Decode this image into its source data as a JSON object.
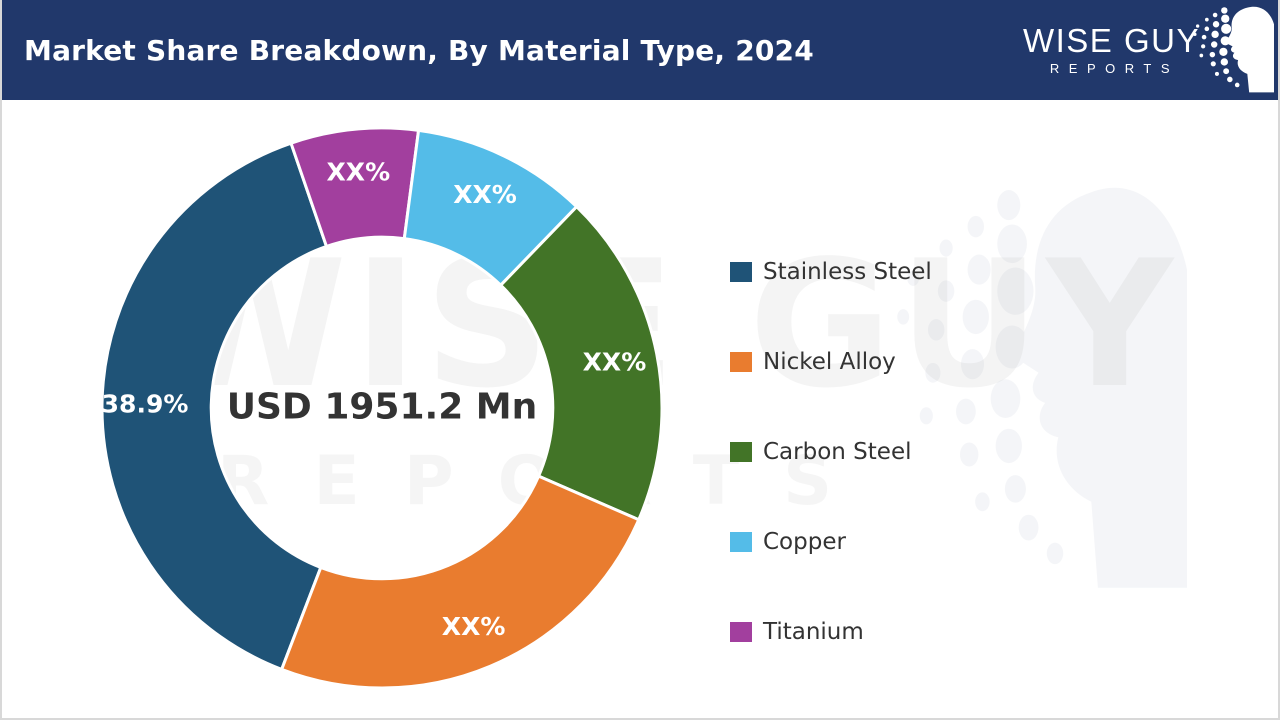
{
  "header": {
    "title": "Market Share Breakdown, By Material Type, 2024",
    "background_color": "#21386B",
    "logo": {
      "line1": "WISE GUY",
      "line2": "REPORTS"
    }
  },
  "chart_data": {
    "type": "pie",
    "subtype": "donut",
    "title": "Market Share Breakdown, By Material Type, 2024",
    "center_label": "USD 1951.2 Mn",
    "start_angle_deg_clockwise_from_top": 201,
    "inner_radius_ratio": 0.61,
    "series": [
      {
        "name": "Stainless Steel",
        "value_pct": 38.9,
        "label": "38.9%",
        "color": "#1F5377"
      },
      {
        "name": "Titanium",
        "value_pct": 7.35,
        "label": "XX%",
        "color": "#A23F9E"
      },
      {
        "name": "Copper",
        "value_pct": 10.15,
        "label": "XX%",
        "color": "#54BCE8"
      },
      {
        "name": "Carbon Steel",
        "value_pct": 19.3,
        "label": "XX%",
        "color": "#427427"
      },
      {
        "name": "Nickel Alloy",
        "value_pct": 24.3,
        "label": "XX%",
        "color": "#E97C2F"
      }
    ],
    "legend_order": [
      "Stainless Steel",
      "Nickel Alloy",
      "Carbon Steel",
      "Copper",
      "Titanium"
    ],
    "legend_position": "right",
    "segment_label_color": "#FFFFFF",
    "center_text_color": "#333333"
  },
  "watermark": {
    "line1": "WISE GUY",
    "line2": "REPORTS"
  }
}
